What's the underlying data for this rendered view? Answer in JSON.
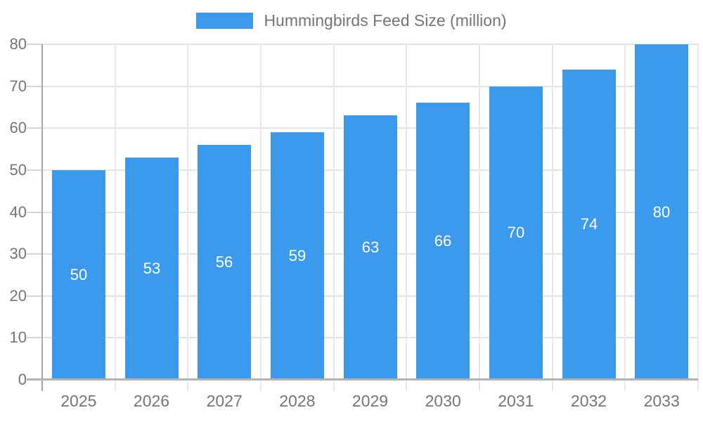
{
  "legend": {
    "label": "Hummingbirds Feed Size (million)"
  },
  "chart_data": {
    "type": "bar",
    "title": "Hummingbirds Feed Size (million)",
    "categories": [
      "2025",
      "2026",
      "2027",
      "2028",
      "2029",
      "2030",
      "2031",
      "2032",
      "2033"
    ],
    "values": [
      50,
      53,
      56,
      59,
      63,
      66,
      70,
      74,
      80
    ],
    "xlabel": "",
    "ylabel": "",
    "ylim": [
      0,
      80
    ],
    "yticks": [
      0,
      10,
      20,
      30,
      40,
      50,
      60,
      70,
      80
    ],
    "grid": true,
    "legend_position": "top-center",
    "bar_labels_inside": true
  },
  "style": {
    "bar_color": "#3b9aec",
    "bar_label_color": "#ffffff",
    "axis_text_color": "#757575",
    "hgrid_color": "#e3e3e3",
    "vgrid_color": "#e9e9e9",
    "tick_color": "#d6d6d6",
    "yaxis_color": "#a8a8a8",
    "baseline_color": "#b3b3b3",
    "background_color": "#ffffff"
  }
}
